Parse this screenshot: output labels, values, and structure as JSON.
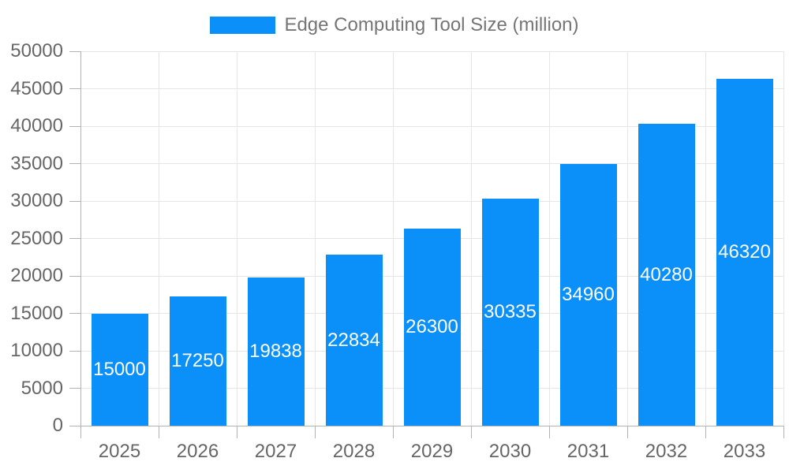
{
  "chart_data": {
    "type": "bar",
    "categories": [
      "2025",
      "2026",
      "2027",
      "2028",
      "2029",
      "2030",
      "2031",
      "2032",
      "2033"
    ],
    "series": [
      {
        "name": "Edge Computing Tool Size (million)",
        "values": [
          15000,
          17250,
          19838,
          22834,
          26300,
          30335,
          34960,
          40280,
          46320
        ]
      }
    ],
    "xlabel": "",
    "ylabel": "",
    "ylim": [
      0,
      50000
    ],
    "ytick_step": 5000,
    "ytick_labels": [
      "0",
      "5000",
      "10000",
      "15000",
      "20000",
      "25000",
      "30000",
      "35000",
      "40000",
      "45000",
      "50000"
    ],
    "grid": true,
    "legend_position": "top-center",
    "bar_labels_inside": true,
    "colors": {
      "bar": "#0a90f8",
      "bar_label_text": "#ffffff",
      "axis_tick_text": "#666666",
      "legend_text": "#757575",
      "gridline": "#e6e6e6",
      "axis_line": "#b3b3b3"
    }
  }
}
